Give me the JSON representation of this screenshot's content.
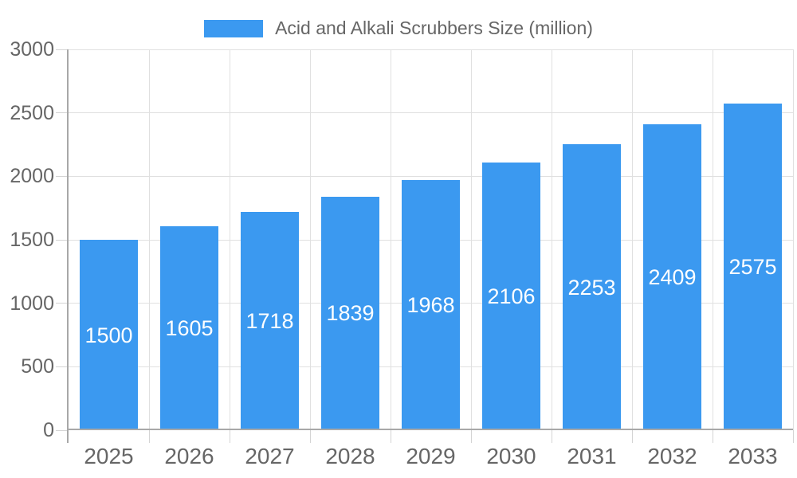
{
  "chart_data": {
    "type": "bar",
    "legend": "Acid and Alkali Scrubbers Size (million)",
    "legend_position": "top",
    "categories": [
      "2025",
      "2026",
      "2027",
      "2028",
      "2029",
      "2030",
      "2031",
      "2032",
      "2033"
    ],
    "values": [
      1500,
      1605,
      1718,
      1839,
      1968,
      2106,
      2253,
      2409,
      2575
    ],
    "title": "",
    "xlabel": "",
    "ylabel": "",
    "ylim": [
      0,
      3000
    ],
    "yticks": [
      0,
      500,
      1000,
      1500,
      2000,
      2500,
      3000
    ],
    "grid": true,
    "bar_labels_inside": true,
    "colors": {
      "bar": "#3b99f0",
      "bar_label": "#ffffff",
      "grid": "#e0e0e0",
      "tick": "#d4d4d4",
      "axis": "#a8a8a8",
      "text": "#666666"
    }
  }
}
